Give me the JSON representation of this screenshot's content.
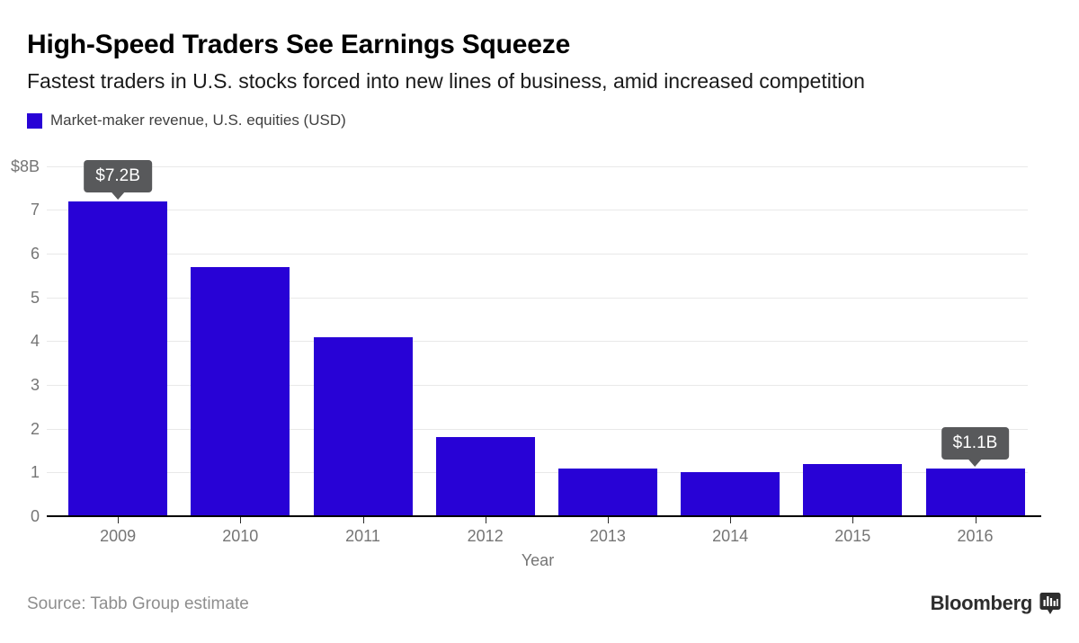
{
  "header": {
    "title": "High-Speed Traders See Earnings Squeeze",
    "subtitle": "Fastest traders in U.S. stocks forced into new lines of business, amid increased competition"
  },
  "legend": {
    "label": "Market-maker revenue, U.S. equities (USD)"
  },
  "chart_data": {
    "type": "bar",
    "title": "Market-maker revenue, U.S. equities (USD)",
    "categories": [
      "2009",
      "2010",
      "2011",
      "2012",
      "2013",
      "2014",
      "2015",
      "2016"
    ],
    "values": [
      7.2,
      5.7,
      4.1,
      1.8,
      1.1,
      1.0,
      1.2,
      1.1
    ],
    "xlabel": "Year",
    "ylabel": "",
    "ylim": [
      0,
      8
    ],
    "y_ticks": [
      0,
      1,
      2,
      3,
      4,
      5,
      6,
      7,
      8
    ],
    "y_tick_labels": [
      "0",
      "1",
      "2",
      "3",
      "4",
      "5",
      "6",
      "7",
      "$8B"
    ],
    "grid": "horizontal",
    "legend_position": "top-left",
    "annotations": [
      {
        "category": "2009",
        "label": "$7.2B"
      },
      {
        "category": "2016",
        "label": "$1.1B"
      }
    ]
  },
  "footer": {
    "source": "Source: Tabb Group estimate",
    "brand": "Bloomberg"
  },
  "colors": {
    "bar": "#2802d6",
    "tooltip_bg": "#58595b",
    "tooltip_text": "#ffffff",
    "grid": "#e9e9e9",
    "axis_line": "#000000",
    "tick_label": "#757575",
    "title": "#000000",
    "subtitle": "#1a1a1a",
    "legend_text": "#3f3f3f",
    "source_text": "#8e8e8e",
    "brand_text": "#2d2d2d"
  }
}
